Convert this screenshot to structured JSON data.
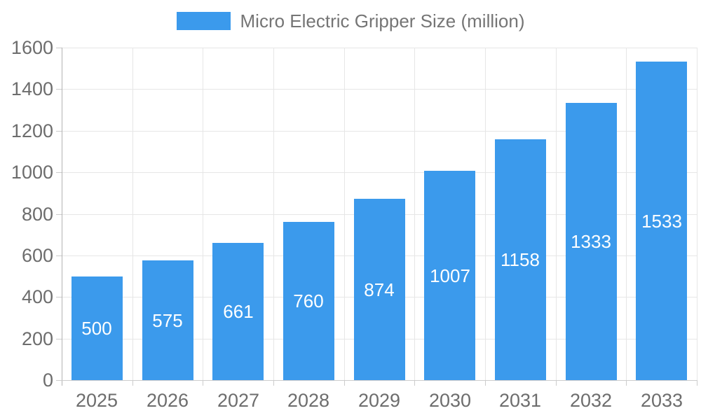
{
  "colors": {
    "bar": "#3b9aec",
    "bar_label": "#ffffff",
    "grid": "#e6e6e6",
    "axis_line": "#b3b3b3",
    "tick_line": "#cccccc",
    "tick_text": "#6d6d6d",
    "legend_text": "#757575"
  },
  "chart_data": {
    "type": "bar",
    "title": "Micro Electric Gripper Size (million)",
    "categories": [
      "2025",
      "2026",
      "2027",
      "2028",
      "2029",
      "2030",
      "2031",
      "2032",
      "2033"
    ],
    "values": [
      500,
      575,
      661,
      760,
      874,
      1007,
      1158,
      1333,
      1533
    ],
    "series": [
      {
        "name": "Micro Electric Gripper Size (million)",
        "values": [
          500,
          575,
          661,
          760,
          874,
          1007,
          1158,
          1333,
          1533
        ]
      }
    ],
    "xlabel": "",
    "ylabel": "",
    "ylim": [
      0,
      1600
    ],
    "ytick_step": 200,
    "yticks": [
      "0",
      "200",
      "400",
      "600",
      "800",
      "1000",
      "1200",
      "1400",
      "1600"
    ],
    "grid": true,
    "legend_position": "top-center",
    "bar_labels_visible": true,
    "bar_label_position": "center"
  }
}
